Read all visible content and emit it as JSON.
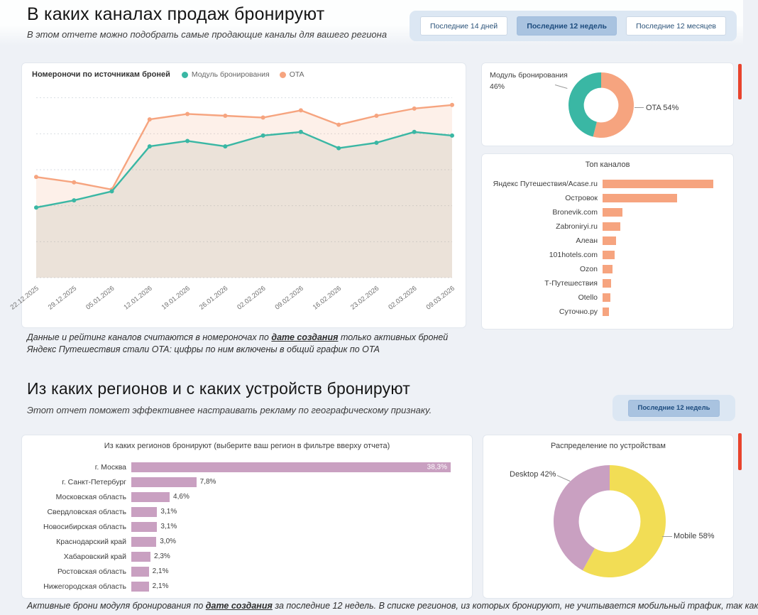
{
  "page": {
    "background": "#eef1f6",
    "scroll_marker_color": "#e8432d"
  },
  "colors": {
    "booking_module": "#3ab7a4",
    "ota": "#f6a47f",
    "regions_bar": "#c9a0c1",
    "desktop": "#c9a0c1",
    "mobile": "#f2dd55",
    "button_group_bg": "#dce7f3",
    "button_selected_bg": "#a9c3e0",
    "button_text": "#2b5379"
  },
  "section_channels": {
    "title": "В каких каналах продаж бронируют",
    "subtitle": "В этом отчете можно подобрать самые продающие каналы для вашего региона",
    "period_buttons": [
      {
        "label": "Последние 14 дней",
        "selected": false
      },
      {
        "label": "Последние 12 недель",
        "selected": true
      },
      {
        "label": "Последние 12 месяцев",
        "selected": false
      }
    ],
    "footnote": {
      "line1_prefix": "Данные и рейтинг каналов считаются в номероночах по ",
      "line1_emphasis": "дате создания",
      "line1_suffix": " только активных броней",
      "line2": "Яндекс Путешествия стали OTA: цифры по ним включены в общий график по OTA"
    }
  },
  "section_regions": {
    "title": "Из каких регионов и с каких устройств бронируют",
    "subtitle": "Этот отчет поможет эффективнее настраивать рекламу по географическому признаку.",
    "period_button": {
      "label": "Последние 12 недель",
      "selected": true
    },
    "footnote": {
      "prefix": "Активные брони модуля бронирования по ",
      "emphasis": "дате создания",
      "suffix": " за последние 12 недель. В списке регионов, из которых бронируют, не учитывается мобильный трафик, так как"
    }
  },
  "chart_data": [
    {
      "type": "line",
      "title": "Номероночи по источникам броней",
      "x": [
        "22.12.2025",
        "29.12.2025",
        "05.01.2026",
        "12.01.2026",
        "19.01.2026",
        "26.01.2026",
        "02.02.2026",
        "09.02.2026",
        "16.02.2026",
        "23.02.2026",
        "02.03.2026",
        "09.03.2026"
      ],
      "series": [
        {
          "name": "Модуль бронирования",
          "color": "#3ab7a4",
          "area_fill": "rgba(140,158,135,0.16)",
          "values": [
            39,
            43,
            48,
            73,
            76,
            73,
            79,
            81,
            72,
            75,
            81,
            79
          ]
        },
        {
          "name": "OTA",
          "color": "#f6a47f",
          "area_fill": "rgba(246,164,127,0.17)",
          "values": [
            56,
            53,
            49,
            88,
            91,
            90,
            89,
            93,
            85,
            90,
            94,
            96
          ]
        }
      ],
      "ylim": [
        0,
        105
      ],
      "grid": "horizontal-dotted",
      "legend_position": "top",
      "y_axis_labels": "none"
    },
    {
      "type": "pie",
      "subtype": "donut",
      "segments_clockwise_from_top": [
        {
          "label": "OTA",
          "value": 54,
          "color": "#f6a47f"
        },
        {
          "label": "Модуль бронирования",
          "value": 46,
          "color": "#3ab7a4"
        }
      ],
      "callout_left_line1": "Модуль бронирования",
      "callout_left_line2": "46%",
      "callout_right": "OTA 54%"
    },
    {
      "type": "bar",
      "orientation": "horizontal",
      "title": "Топ каналов",
      "color": "#f6a47f",
      "categories": [
        "Яндекс Путешествия/Acase.ru",
        "Островок",
        "Bronevik.com",
        "Zabroniryi.ru",
        "Алеан",
        "101hotels.com",
        "Ozon",
        "Т-Путешествия",
        "Otello",
        "Суточно.ру"
      ],
      "values_relative": [
        100,
        67,
        18,
        16,
        12,
        11,
        9,
        8,
        7,
        6
      ],
      "data_labels": "none"
    },
    {
      "type": "bar",
      "orientation": "horizontal",
      "title": "Из каких регионов бронируют (выберите ваш регион в фильтре вверху отчета)",
      "color": "#c9a0c1",
      "categories": [
        "г. Москва",
        "г. Санкт-Петербург",
        "Московская область",
        "Свердловская область",
        "Новосибирская область",
        "Краснодарский край",
        "Хабаровский край",
        "Ростовская область",
        "Нижегородская область"
      ],
      "values": [
        38.3,
        7.8,
        4.6,
        3.1,
        3.1,
        3.0,
        2.3,
        2.1,
        2.1
      ],
      "data_labels": [
        "38,3%",
        "7,8%",
        "4,6%",
        "3,1%",
        "3,1%",
        "3,0%",
        "2,3%",
        "2,1%",
        "2,1%"
      ]
    },
    {
      "type": "pie",
      "subtype": "donut",
      "title": "Распределение по устройствам",
      "segments_clockwise_from_top": [
        {
          "label": "Mobile",
          "value": 58,
          "color": "#f2dd55"
        },
        {
          "label": "Desktop",
          "value": 42,
          "color": "#c9a0c1"
        }
      ],
      "callout_left": "Desktop 42%",
      "callout_right": "Mobile 58%"
    }
  ]
}
